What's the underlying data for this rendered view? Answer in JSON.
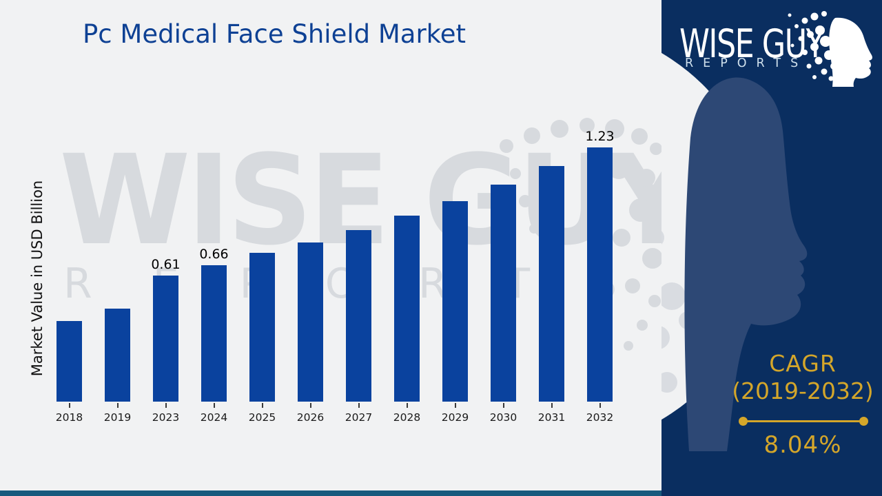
{
  "title": "Pc Medical Face Shield Market",
  "chart_data": {
    "type": "bar",
    "title": "Pc Medical Face Shield Market",
    "categories": [
      "2018",
      "2019",
      "2023",
      "2024",
      "2025",
      "2026",
      "2027",
      "2028",
      "2029",
      "2030",
      "2031",
      "2032"
    ],
    "values": [
      0.39,
      0.45,
      0.61,
      0.66,
      0.72,
      0.77,
      0.83,
      0.9,
      0.97,
      1.05,
      1.14,
      1.23
    ],
    "labeled_points": {
      "2023": "0.61",
      "2024": "0.66",
      "2032": "1.23"
    },
    "xlabel": "",
    "ylabel": "Market Value in USD Billion",
    "ylim": [
      0,
      1.4
    ],
    "grid": false,
    "legend": false,
    "bar_color": "#0a429e"
  },
  "watermark": {
    "line1": "WISE GUY",
    "line2": "REPORTS"
  },
  "brand_panel": {
    "logo_line1": "WISE GUY",
    "logo_line2": "REPORTS",
    "cagr_label": "CAGR",
    "cagr_range": "(2019-2032)",
    "cagr_value": "8.04%"
  },
  "colors": {
    "background": "#f1f2f3",
    "bar": "#0a429e",
    "title_blue": "#0e4194",
    "watermark_gray": "#d7dade",
    "panel_navy": "#0a2e60",
    "panel_face": "#2d4875",
    "gold": "#d4a62a",
    "footer_teal": "#175a7d",
    "logo_reports_text": "#cfe0ec"
  }
}
